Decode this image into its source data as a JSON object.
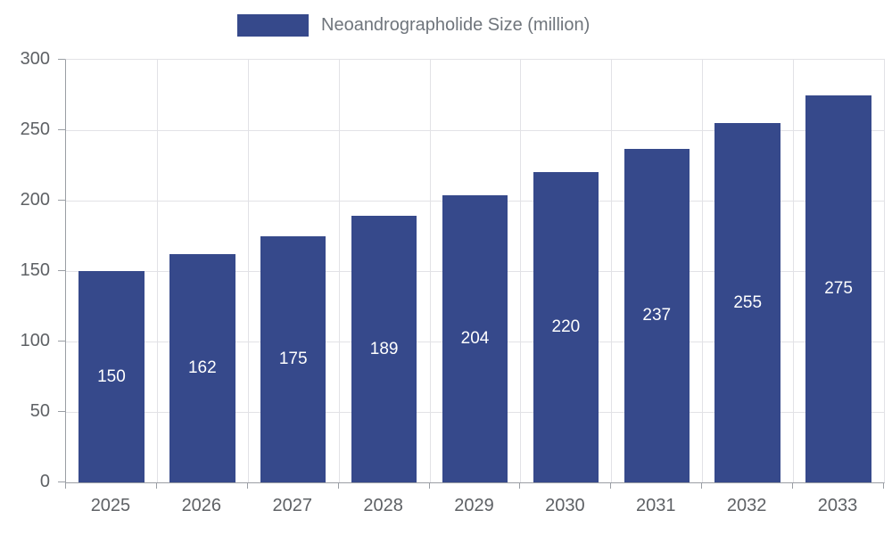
{
  "legend": {
    "label": "Neoandrographolide Size (million)"
  },
  "colors": {
    "bar": "#36498b",
    "grid": "#e2e2e6",
    "axis_line": "#9a9ea4",
    "tick_label": "#5e6165",
    "legend_text": "#6f757c",
    "value_label": "#ffffff",
    "background": "#ffffff"
  },
  "chart_data": {
    "type": "bar",
    "title": "",
    "series_name": "Neoandrographolide Size (million)",
    "categories": [
      "2025",
      "2026",
      "2027",
      "2028",
      "2029",
      "2030",
      "2031",
      "2032",
      "2033"
    ],
    "values": [
      150,
      162,
      175,
      189,
      204,
      220,
      237,
      255,
      275
    ],
    "value_labels_shown": true,
    "value_label_position": "inside-center",
    "xlabel": "",
    "ylabel": "",
    "ylim": [
      0,
      300
    ],
    "yticks": [
      0,
      50,
      100,
      150,
      200,
      250,
      300
    ],
    "grid": true,
    "legend_position": "top-center",
    "bar_band_fraction": 0.72
  }
}
